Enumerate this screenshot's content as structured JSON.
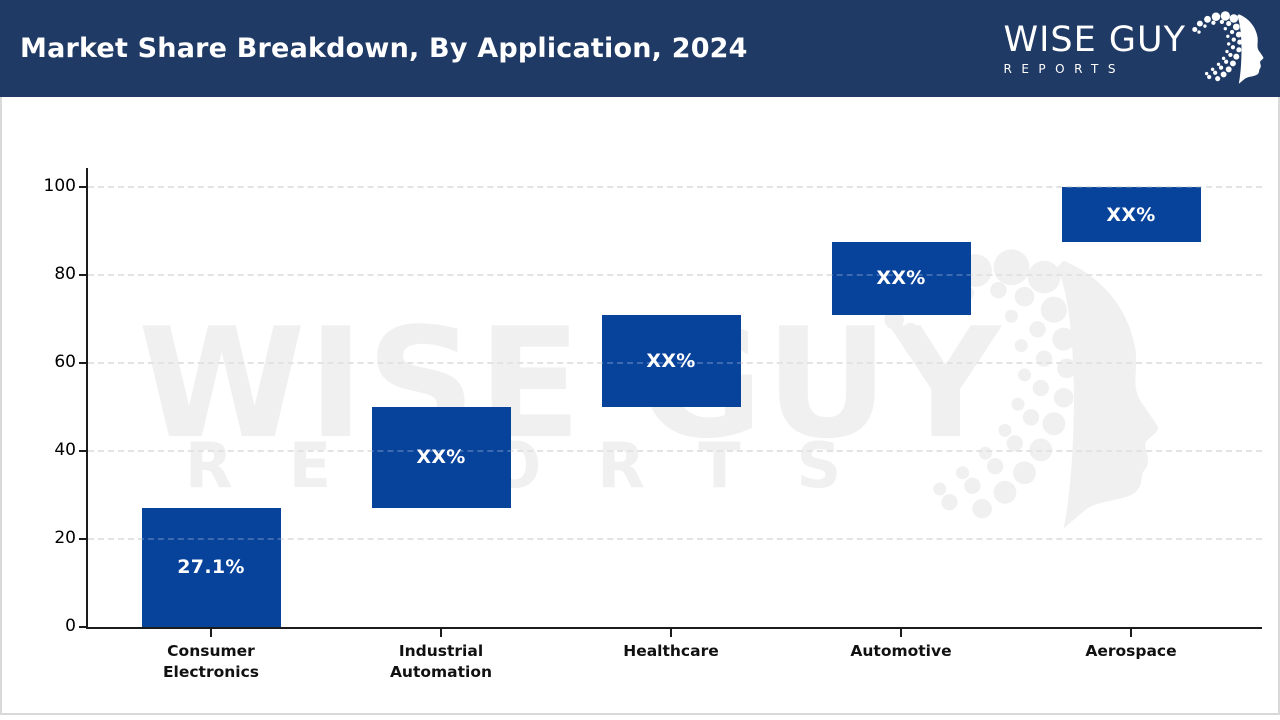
{
  "header": {
    "title": "Market Share Breakdown, By Application, 2024"
  },
  "logo": {
    "line1": "WISE GUY",
    "line2": "REPORTS"
  },
  "watermark": {
    "line1": "WISE GUY",
    "line2": "REPORTS"
  },
  "colors": {
    "header_bg": "#203a66",
    "bar": "#07429b",
    "bar_label": "#ffffff",
    "grid": "#dcdcdc",
    "axis": "#1c1c1c",
    "watermark": "#f0f0f1",
    "frame": "#d9d9d9"
  },
  "chart_data": {
    "type": "bar",
    "variant": "waterfall",
    "title": "Market Share Breakdown, By Application, 2024",
    "xlabel": "",
    "ylabel": "",
    "ylim": [
      0,
      104
    ],
    "yticks": [
      0,
      20,
      40,
      60,
      80,
      100
    ],
    "grid": "dashed-horizontal",
    "legend": "none",
    "categories": [
      "Consumer\nElectronics",
      "Industrial\nAutomation",
      "Healthcare",
      "Automotive",
      "Aerospace"
    ],
    "segments": [
      {
        "category": "Consumer Electronics",
        "start": 0,
        "end": 27.1,
        "value": 27.1,
        "label": "27.1%"
      },
      {
        "category": "Industrial Automation",
        "start": 27.1,
        "end": 50,
        "value": 22.9,
        "label": "XX%"
      },
      {
        "category": "Healthcare",
        "start": 50,
        "end": 71,
        "value": 21.0,
        "label": "XX%"
      },
      {
        "category": "Automotive",
        "start": 71,
        "end": 87.5,
        "value": 16.5,
        "label": "XX%"
      },
      {
        "category": "Aerospace",
        "start": 87.5,
        "end": 100,
        "value": 12.5,
        "label": "XX%"
      }
    ]
  }
}
